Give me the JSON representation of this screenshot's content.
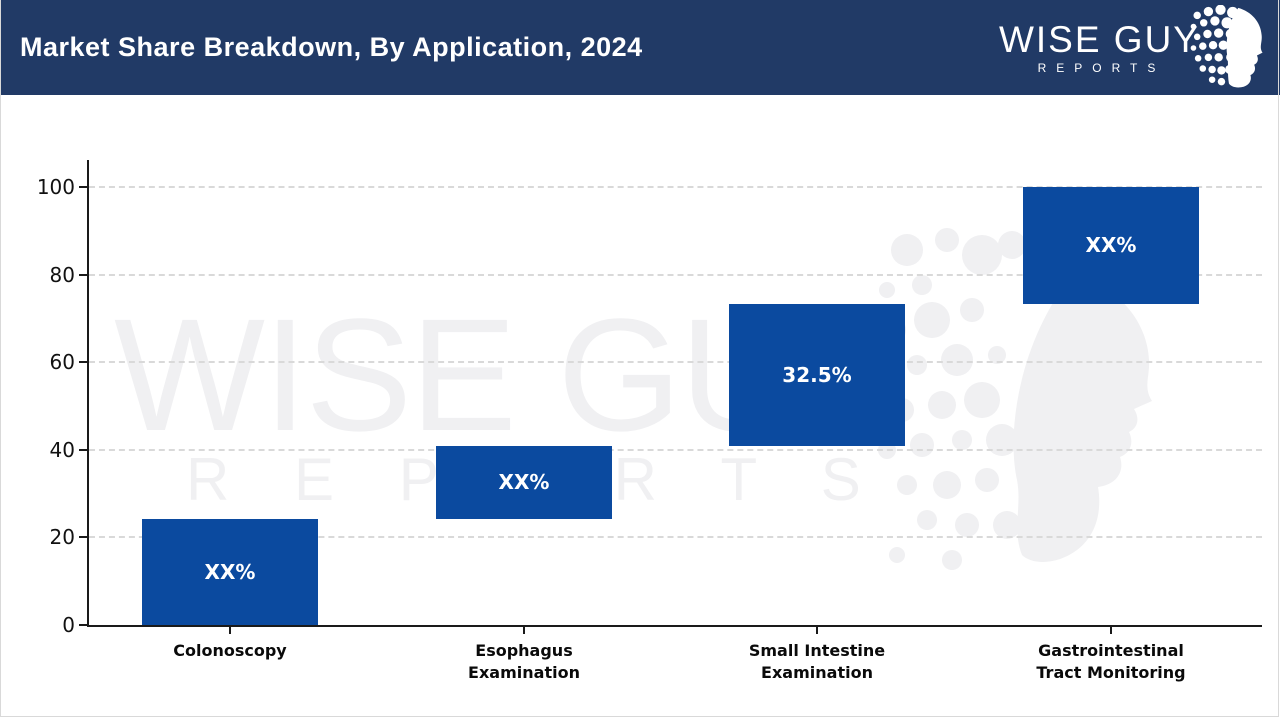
{
  "header": {
    "title": "Market Share Breakdown, By Application, 2024",
    "logo": {
      "line1": "WISE GUY",
      "line2": "REPORTS"
    }
  },
  "watermark": {
    "line1": "WISE GU",
    "line2": "R E P O R T S"
  },
  "colors": {
    "header_bg": "#213a66",
    "title": "#ffffff",
    "bar": "#0b4a9f",
    "bar_label": "#ffffff",
    "grid": "#d9d9d9",
    "axis": "#1a1a1a",
    "watermark": "#f0f0f2"
  },
  "chart_data": {
    "type": "bar",
    "subtype": "waterfall",
    "title": "Market Share Breakdown, By Application, 2024",
    "xlabel": "",
    "ylabel": "",
    "ylim": [
      0,
      106
    ],
    "yticks": [
      0,
      20,
      40,
      60,
      80,
      100
    ],
    "grid": "horizontal dashed",
    "legend": "none",
    "categories": [
      "Colonoscopy",
      "Esophagus\nExamination",
      "Small Intestine\nExamination",
      "Gastrointestinal\nTract Monitoring"
    ],
    "segments": [
      {
        "category": "Colonoscopy",
        "start": 0,
        "end": 24.3,
        "value_est": 24.3,
        "label": "XX%"
      },
      {
        "category": "Esophagus Examination",
        "start": 24.3,
        "end": 40.8,
        "value_est": 16.5,
        "label": "XX%"
      },
      {
        "category": "Small Intestine Examination",
        "start": 40.8,
        "end": 73.3,
        "value_est": 32.5,
        "label": "32.5%"
      },
      {
        "category": "Gastrointestinal Tract Monitoring",
        "start": 73.3,
        "end": 100,
        "value_est": 26.7,
        "label": "XX%"
      }
    ]
  }
}
